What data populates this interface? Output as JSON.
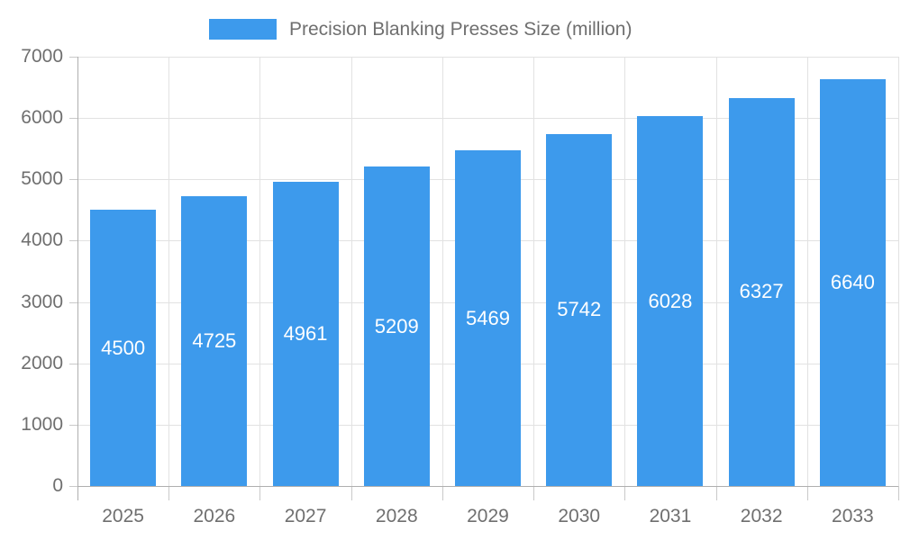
{
  "legend": {
    "label": "Precision Blanking Presses Size (million)"
  },
  "chart_data": {
    "type": "bar",
    "title": "",
    "xlabel": "",
    "ylabel": "",
    "categories": [
      "2025",
      "2026",
      "2027",
      "2028",
      "2029",
      "2030",
      "2031",
      "2032",
      "2033"
    ],
    "series": [
      {
        "name": "Precision Blanking Presses Size (million)",
        "values": [
          4500,
          4725,
          4961,
          5209,
          5469,
          5742,
          6028,
          6327,
          6640
        ]
      }
    ],
    "value_labels": [
      "4500",
      "4725",
      "4961",
      "5209",
      "5469",
      "5742",
      "6028",
      "6327",
      "6640"
    ],
    "ylim": [
      0,
      7000
    ],
    "yticks": [
      0,
      1000,
      2000,
      3000,
      4000,
      5000,
      6000,
      7000
    ],
    "ytick_labels": [
      "0",
      "1000",
      "2000",
      "3000",
      "4000",
      "5000",
      "6000",
      "7000"
    ],
    "grid": true,
    "legend_position": "top",
    "colors": {
      "bar": "#3D9AEC",
      "grid_line": "#E2E2E2",
      "axis_line": "#AFAFAF",
      "tick_line": "#C9C9C9",
      "axis_text": "#6F6F6F",
      "value_text": "#FFFFFF",
      "background": "#FFFFFF"
    }
  }
}
